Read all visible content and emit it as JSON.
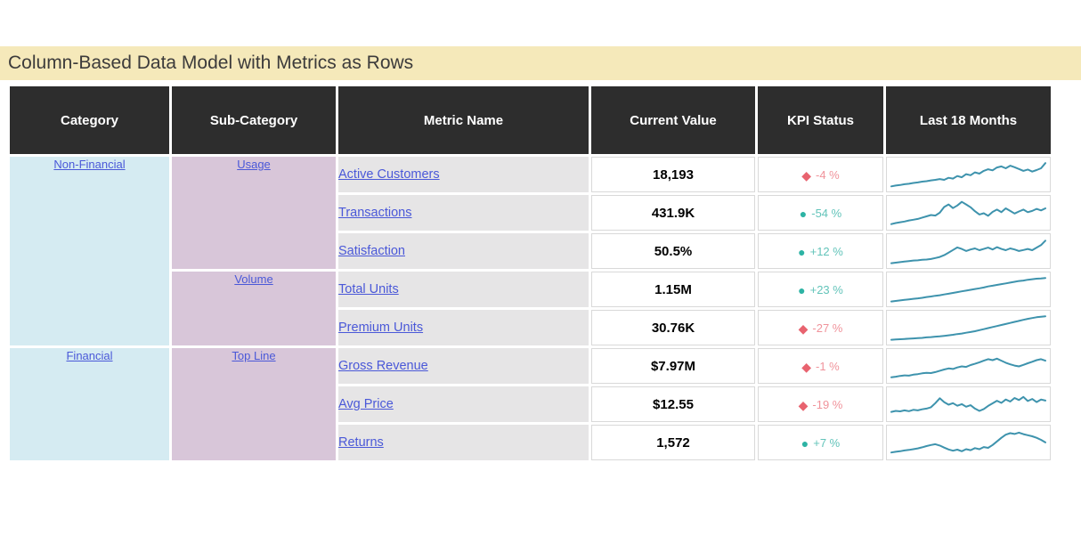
{
  "title": "Column-Based Data Model with Metrics as Rows",
  "colors": {
    "title_bg": "#f5e9ba",
    "header_bg": "#2d2d2d",
    "header_text": "#ffffff",
    "category_bg": "#d5ebf2",
    "subcategory_bg": "#d8c6d9",
    "metric_bg": "#e6e5e6",
    "link": "#4a58d8",
    "value_text": "#000000",
    "kpi_red_icon": "#e8636f",
    "kpi_red_text": "#f0939b",
    "kpi_teal_icon": "#2db3a4",
    "kpi_teal_text": "#63c4ba",
    "sparkline": "#3e93ad",
    "cell_border": "#d9d9d9"
  },
  "chart_data": {
    "type": "table",
    "title": "Column-Based Data Model with Metrics as Rows",
    "columns": [
      "Category",
      "Sub-Category",
      "Metric Name",
      "Current Value",
      "KPI Status",
      "Last 18 Months"
    ],
    "layout": {
      "category_spans": [
        [
          "Non-Financial",
          5
        ],
        [
          "Financial",
          3
        ]
      ],
      "subcategory_spans": [
        [
          "Usage",
          3
        ],
        [
          "Volume",
          2
        ],
        [
          "Top Line",
          3
        ]
      ],
      "sparkline_note": "normalized 0-1 values, left to right over last 18 months"
    },
    "rows": [
      {
        "category": "Non-Financial",
        "subcategory": "Usage",
        "metric": "Active Customers",
        "value": "18,193",
        "kpi_icon": "diamond",
        "kpi_color": "red",
        "kpi_delta": "-4 %",
        "sparkline": [
          0.06,
          0.09,
          0.11,
          0.14,
          0.16,
          0.19,
          0.21,
          0.24,
          0.26,
          0.29,
          0.31,
          0.34,
          0.31,
          0.39,
          0.36,
          0.46,
          0.41,
          0.53,
          0.49,
          0.6,
          0.55,
          0.66,
          0.72,
          0.68,
          0.79,
          0.83,
          0.76,
          0.86,
          0.8,
          0.73,
          0.66,
          0.71,
          0.63,
          0.69,
          0.76,
          0.96
        ]
      },
      {
        "category": "Non-Financial",
        "subcategory": "Usage",
        "metric": "Transactions",
        "value": "431.9K",
        "kpi_icon": "circle",
        "kpi_color": "teal",
        "kpi_delta": "-54 %",
        "sparkline": [
          0.08,
          0.12,
          0.15,
          0.18,
          0.22,
          0.25,
          0.28,
          0.33,
          0.38,
          0.43,
          0.41,
          0.52,
          0.74,
          0.84,
          0.7,
          0.8,
          0.94,
          0.84,
          0.73,
          0.58,
          0.45,
          0.5,
          0.4,
          0.55,
          0.64,
          0.54,
          0.69,
          0.59,
          0.49,
          0.57,
          0.64,
          0.54,
          0.59,
          0.67,
          0.61,
          0.69
        ]
      },
      {
        "category": "Non-Financial",
        "subcategory": "Usage",
        "metric": "Satisfaction",
        "value": "50.5%",
        "kpi_icon": "circle",
        "kpi_color": "teal",
        "kpi_delta": "+12 %",
        "sparkline": [
          0.05,
          0.07,
          0.09,
          0.11,
          0.13,
          0.15,
          0.16,
          0.18,
          0.19,
          0.21,
          0.25,
          0.29,
          0.36,
          0.46,
          0.56,
          0.66,
          0.6,
          0.52,
          0.58,
          0.62,
          0.55,
          0.6,
          0.65,
          0.58,
          0.67,
          0.6,
          0.55,
          0.62,
          0.58,
          0.52,
          0.56,
          0.6,
          0.55,
          0.65,
          0.75,
          0.92
        ]
      },
      {
        "category": "Non-Financial",
        "subcategory": "Volume",
        "metric": "Total Units",
        "value": "1.15M",
        "kpi_icon": "circle",
        "kpi_color": "teal",
        "kpi_delta": "+23 %",
        "sparkline": [
          0.05,
          0.07,
          0.09,
          0.11,
          0.13,
          0.15,
          0.17,
          0.19,
          0.22,
          0.24,
          0.27,
          0.29,
          0.32,
          0.35,
          0.38,
          0.41,
          0.44,
          0.47,
          0.5,
          0.53,
          0.56,
          0.59,
          0.63,
          0.66,
          0.69,
          0.72,
          0.75,
          0.78,
          0.81,
          0.84,
          0.86,
          0.89,
          0.91,
          0.93,
          0.94,
          0.96
        ]
      },
      {
        "category": "Non-Financial",
        "subcategory": "Volume",
        "metric": "Premium Units",
        "value": "30.76K",
        "kpi_icon": "diamond",
        "kpi_color": "red",
        "kpi_delta": "-27 %",
        "sparkline": [
          0.05,
          0.06,
          0.07,
          0.08,
          0.09,
          0.1,
          0.11,
          0.12,
          0.14,
          0.15,
          0.17,
          0.18,
          0.2,
          0.22,
          0.24,
          0.27,
          0.29,
          0.32,
          0.35,
          0.38,
          0.42,
          0.46,
          0.5,
          0.54,
          0.58,
          0.62,
          0.66,
          0.7,
          0.74,
          0.78,
          0.82,
          0.86,
          0.89,
          0.92,
          0.94,
          0.96
        ]
      },
      {
        "category": "Financial",
        "subcategory": "Top Line",
        "metric": "Gross Revenue",
        "value": "$7.97M",
        "kpi_icon": "diamond",
        "kpi_color": "red",
        "kpi_delta": "-1 %",
        "sparkline": [
          0.08,
          0.1,
          0.13,
          0.15,
          0.14,
          0.18,
          0.2,
          0.23,
          0.25,
          0.24,
          0.28,
          0.33,
          0.38,
          0.42,
          0.4,
          0.46,
          0.5,
          0.48,
          0.55,
          0.6,
          0.66,
          0.72,
          0.78,
          0.74,
          0.8,
          0.72,
          0.64,
          0.58,
          0.53,
          0.5,
          0.56,
          0.62,
          0.68,
          0.74,
          0.78,
          0.72
        ]
      },
      {
        "category": "Financial",
        "subcategory": "Top Line",
        "metric": "Avg Price",
        "value": "$12.55",
        "kpi_icon": "diamond",
        "kpi_color": "red",
        "kpi_delta": "-19 %",
        "sparkline": [
          0.22,
          0.26,
          0.24,
          0.28,
          0.25,
          0.3,
          0.28,
          0.32,
          0.35,
          0.4,
          0.56,
          0.75,
          0.6,
          0.5,
          0.56,
          0.46,
          0.52,
          0.42,
          0.48,
          0.35,
          0.26,
          0.33,
          0.45,
          0.55,
          0.65,
          0.57,
          0.7,
          0.62,
          0.76,
          0.68,
          0.8,
          0.64,
          0.72,
          0.6,
          0.7,
          0.66
        ]
      },
      {
        "category": "Financial",
        "subcategory": "Top Line",
        "metric": "Returns",
        "value": "1,572",
        "kpi_icon": "circle",
        "kpi_color": "teal",
        "kpi_delta": "+7 %",
        "sparkline": [
          0.13,
          0.16,
          0.18,
          0.21,
          0.23,
          0.26,
          0.29,
          0.33,
          0.38,
          0.42,
          0.45,
          0.4,
          0.32,
          0.25,
          0.2,
          0.24,
          0.18,
          0.26,
          0.22,
          0.3,
          0.26,
          0.34,
          0.31,
          0.42,
          0.56,
          0.7,
          0.82,
          0.88,
          0.85,
          0.9,
          0.84,
          0.8,
          0.76,
          0.7,
          0.62,
          0.52
        ]
      }
    ]
  }
}
